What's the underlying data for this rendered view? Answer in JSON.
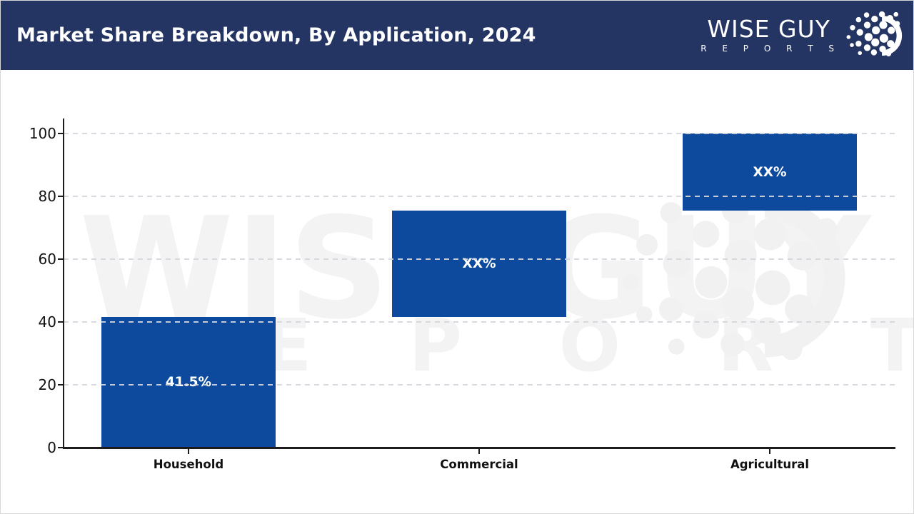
{
  "header": {
    "title": "Market Share Breakdown, By Application, 2024",
    "bg_color": "#243463",
    "logo": {
      "line1": "WISE GUY",
      "line2": "R E P O R T S",
      "head_icon": "dotted-head-profile-icon"
    }
  },
  "watermark": {
    "line1": "WISE GUY",
    "line2": "R E P O R T S",
    "head_icon": "dotted-head-profile-icon"
  },
  "chart_data": {
    "type": "bar",
    "subtype": "waterfall",
    "title": "Market Share Breakdown, By Application, 2024",
    "xlabel": "",
    "ylabel": "",
    "categories": [
      "Household",
      "Commercial",
      "Agricultural"
    ],
    "segments": [
      {
        "category": "Household",
        "base": 0,
        "top": 41.5,
        "label": "41.5%"
      },
      {
        "category": "Commercial",
        "base": 41.5,
        "top": 75.4,
        "label": "XX%"
      },
      {
        "category": "Agricultural",
        "base": 75.4,
        "top": 100,
        "label": "XX%"
      }
    ],
    "y_ticks": [
      0,
      20,
      40,
      60,
      80,
      100
    ],
    "ylim": [
      0,
      105
    ],
    "grid": true,
    "legend": false,
    "bar_color": "#0d4a9e",
    "value_label_color": "#ffffff",
    "grid_color": "#d8d8d8",
    "axis_color": "#1c1c1c"
  }
}
